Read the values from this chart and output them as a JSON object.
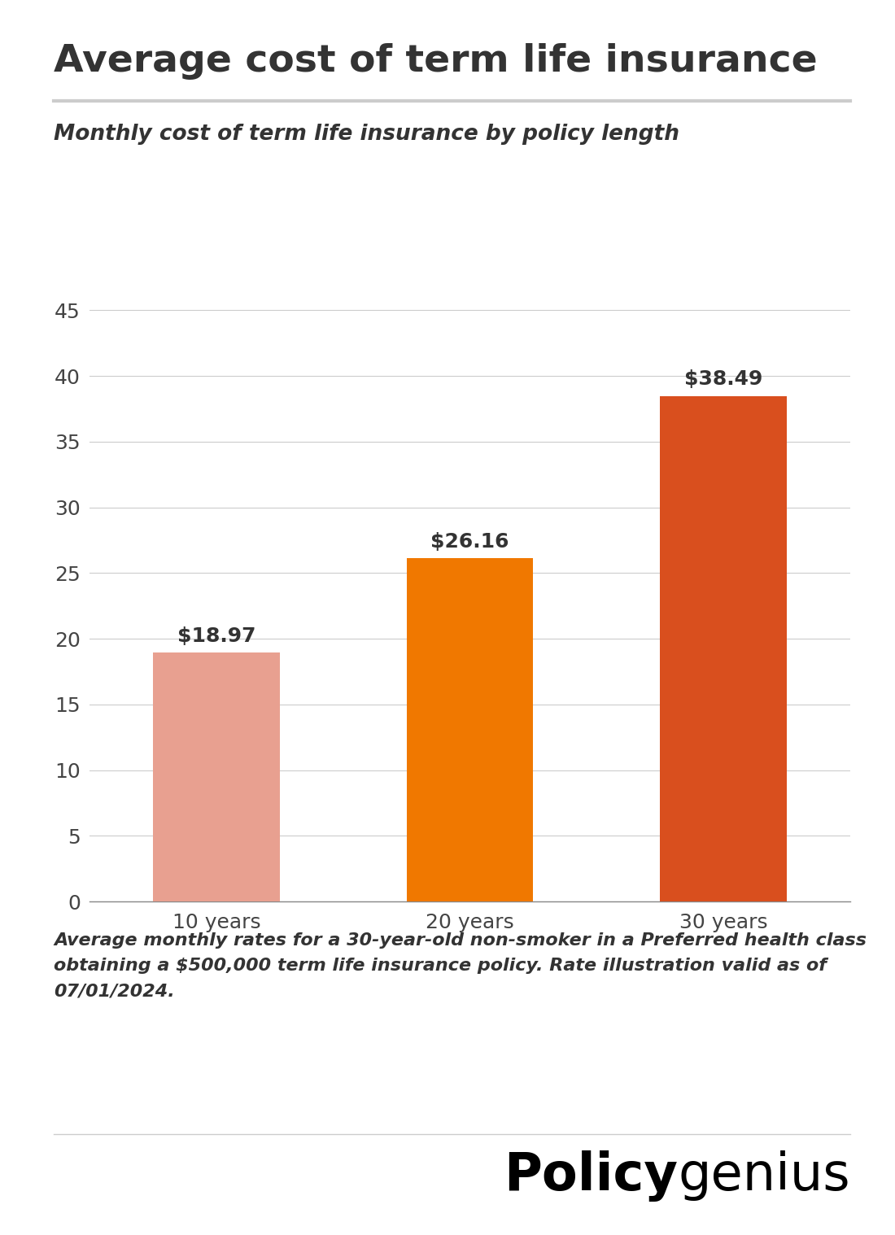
{
  "title": "Average cost of term life insurance",
  "subtitle": "Monthly cost of term life insurance by policy length",
  "categories": [
    "10 years",
    "20 years",
    "30 years"
  ],
  "values": [
    18.97,
    26.16,
    38.49
  ],
  "bar_colors": [
    "#e8a090",
    "#f07800",
    "#d94f1e"
  ],
  "bar_labels": [
    "$18.97",
    "$26.16",
    "$38.49"
  ],
  "ylim": [
    0,
    47
  ],
  "yticks": [
    0,
    5,
    10,
    15,
    20,
    25,
    30,
    35,
    40,
    45
  ],
  "footnote_line1": "Average monthly rates for a 30-year-old non-smoker in a Preferred health class",
  "footnote_line2": "obtaining a $500,000 term life insurance policy. Rate illustration valid as of",
  "footnote_line3": "07/01/2024.",
  "logo_text_bold": "Policy",
  "logo_text_regular": "genius",
  "background_color": "#ffffff",
  "title_color": "#333333",
  "subtitle_color": "#333333",
  "axis_color": "#444444",
  "grid_color": "#cccccc",
  "separator_color": "#cccccc",
  "title_fontsize": 34,
  "subtitle_fontsize": 19,
  "label_fontsize": 18,
  "tick_fontsize": 18,
  "footnote_fontsize": 16,
  "logo_fontsize": 46
}
